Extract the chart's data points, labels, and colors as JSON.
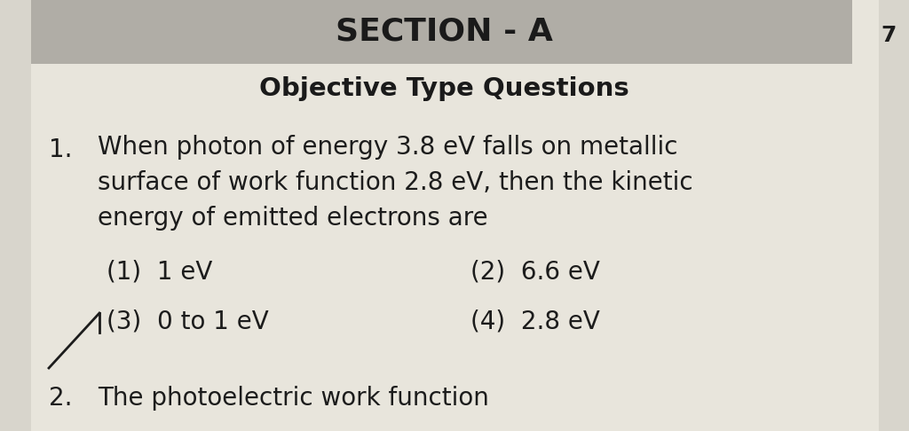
{
  "page_background": "#d8d5cc",
  "content_bg": "#e8e5dc",
  "header_bg": "#b0ada6",
  "header_text": "SECTION - A",
  "header_text_color": "#1a1a1a",
  "subtitle": "Objective Type Questions",
  "subtitle_color": "#1a1a1a",
  "q1_num": "1.",
  "q1_line1": "When photon of energy 3.8 eV falls on metallic",
  "q1_line2": "surface of work function 2.8 eV, then the kinetic",
  "q1_line3": "energy of emitted electrons are",
  "opt1": "(1)  1 eV",
  "opt2": "(2)  6.6 eV",
  "opt3": "(3)  0 to 1 eV",
  "opt4": "(4)  2.8 eV",
  "q2_num": "2.",
  "q2_text": "The photoelectric work function",
  "text_color": "#1c1c1c",
  "page_number": "7",
  "figsize": [
    10.24,
    4.86
  ],
  "dpi": 100
}
